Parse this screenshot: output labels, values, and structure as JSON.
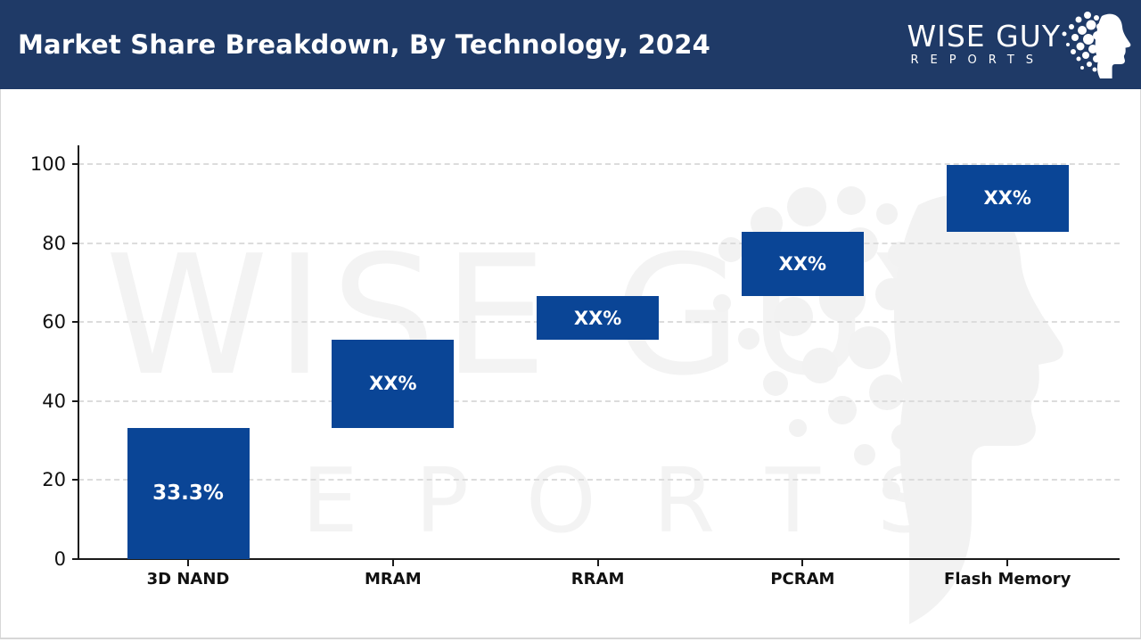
{
  "header": {
    "title": "Market Share Breakdown, By Technology, 2024",
    "logo": {
      "line1": "WISE GUY",
      "line2": "REPORTS"
    }
  },
  "watermark": {
    "line1": "WISE GUY",
    "line2": "REPORTS"
  },
  "colors": {
    "header_bg": "#1f3a67",
    "bar": "#0a4596",
    "grid": "#dcdcdc",
    "axis": "#1a1a1a",
    "bar_label": "#ffffff"
  },
  "chart_data": {
    "type": "bar",
    "subtype": "waterfall",
    "title": "Market Share Breakdown, By Technology, 2024",
    "xlabel": "",
    "ylabel": "",
    "ylim": [
      0,
      100
    ],
    "yticks": [
      0,
      20,
      40,
      60,
      80,
      100
    ],
    "grid": "horizontal-dashed",
    "legend": "none",
    "categories": [
      "3D NAND",
      "MRAM",
      "RRAM",
      "PCRAM",
      "Flash Memory"
    ],
    "segments": [
      {
        "category": "3D NAND",
        "start": 0,
        "end": 33.3,
        "label": "33.3%"
      },
      {
        "category": "MRAM",
        "start": 33.3,
        "end": 55.5,
        "label": "XX%"
      },
      {
        "category": "RRAM",
        "start": 55.5,
        "end": 66.6,
        "label": "XX%"
      },
      {
        "category": "PCRAM",
        "start": 66.6,
        "end": 83.0,
        "label": "XX%"
      },
      {
        "category": "Flash Memory",
        "start": 83.0,
        "end": 99.9,
        "label": "XX%"
      }
    ]
  }
}
